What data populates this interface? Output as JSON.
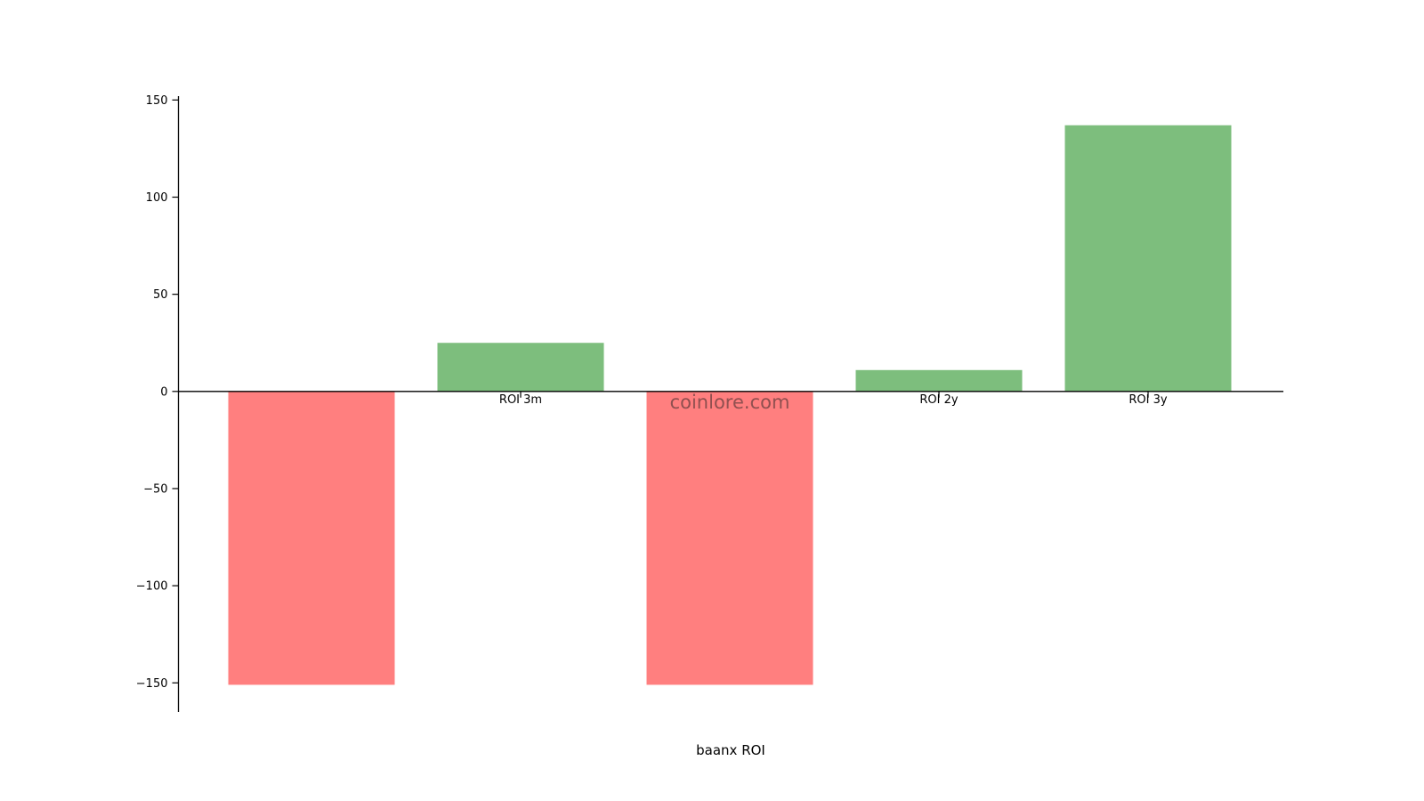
{
  "watermark": {
    "text": "coinlore.com"
  },
  "chart_data": {
    "type": "bar",
    "title": "",
    "xlabel": "baanx ROI",
    "ylabel": "",
    "categories": [
      "",
      "ROI 3m",
      "",
      "ROI 2y",
      "ROI 3y"
    ],
    "values": [
      -151,
      25,
      -151,
      11,
      137
    ],
    "positive_color": "#7dbe7d",
    "negative_color": "#ff7f7f",
    "axis_color": "#000000",
    "label_color": "#000000",
    "watermark_color": "rgba(33,33,33,0.5)",
    "background": "#ffffff",
    "y_ticks": [
      150,
      100,
      50,
      0,
      -50,
      -100,
      -150
    ],
    "ylim": [
      -165,
      152
    ],
    "grid": false,
    "legend": false
  }
}
